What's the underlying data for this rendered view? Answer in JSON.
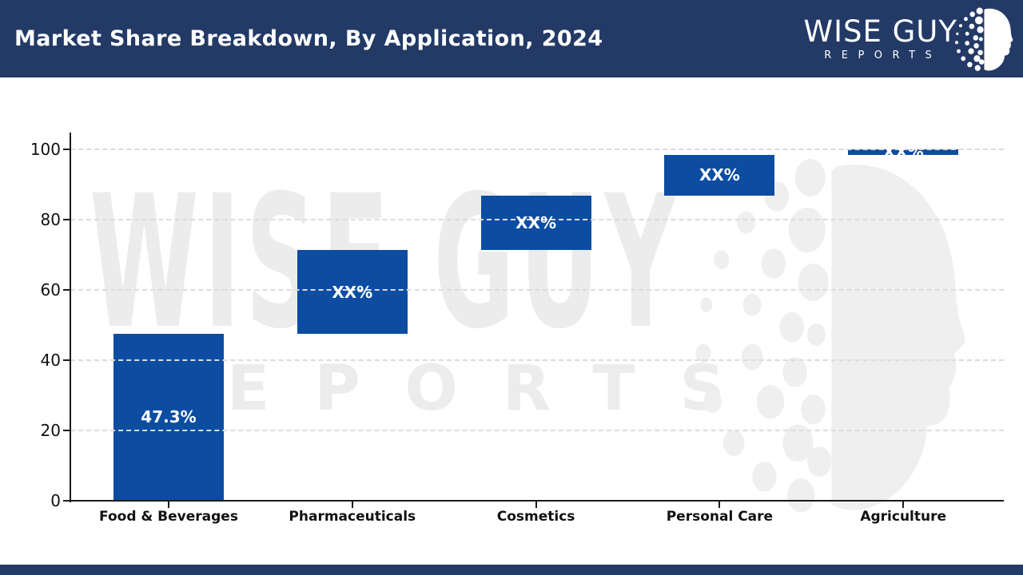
{
  "header": {
    "title": "Market Share Breakdown, By Application, 2024",
    "brand": {
      "name": "WISE GUY",
      "sub": "REPORTS"
    }
  },
  "watermark": {
    "line1": "WISE GUY",
    "line2": "REPORTS"
  },
  "colors": {
    "header_bg": "#233a66",
    "footer_bg": "#233a66",
    "bar": "#0c4da2",
    "grid": "#dcdcdc",
    "axis": "#1a1a1a",
    "watermark": "#ececec",
    "bar_label": "#ffffff"
  },
  "chart_data": {
    "type": "bar",
    "subtype": "waterfall",
    "title": "Market Share Breakdown, By Application, 2024",
    "categories": [
      "Food & Beverages",
      "Pharmaceuticals",
      "Cosmetics",
      "Personal Care",
      "Agriculture"
    ],
    "bars": [
      {
        "category": "Food & Beverages",
        "start": 0,
        "end": 47.3,
        "label": "47.3%"
      },
      {
        "category": "Pharmaceuticals",
        "start": 47.3,
        "end": 71.3,
        "label": "XX%"
      },
      {
        "category": "Cosmetics",
        "start": 71.3,
        "end": 86.6,
        "label": "XX%"
      },
      {
        "category": "Personal Care",
        "start": 86.6,
        "end": 98.4,
        "label": "XX%"
      },
      {
        "category": "Agriculture",
        "start": 98.4,
        "end": 100,
        "label": "XX%"
      }
    ],
    "ylim": [
      0,
      100
    ],
    "yticks": [
      0,
      20,
      40,
      60,
      80,
      100
    ],
    "xlabel": "",
    "ylabel": "",
    "grid": "horizontal-dashed",
    "legend": "none",
    "bar_color": "#0c4da2"
  }
}
